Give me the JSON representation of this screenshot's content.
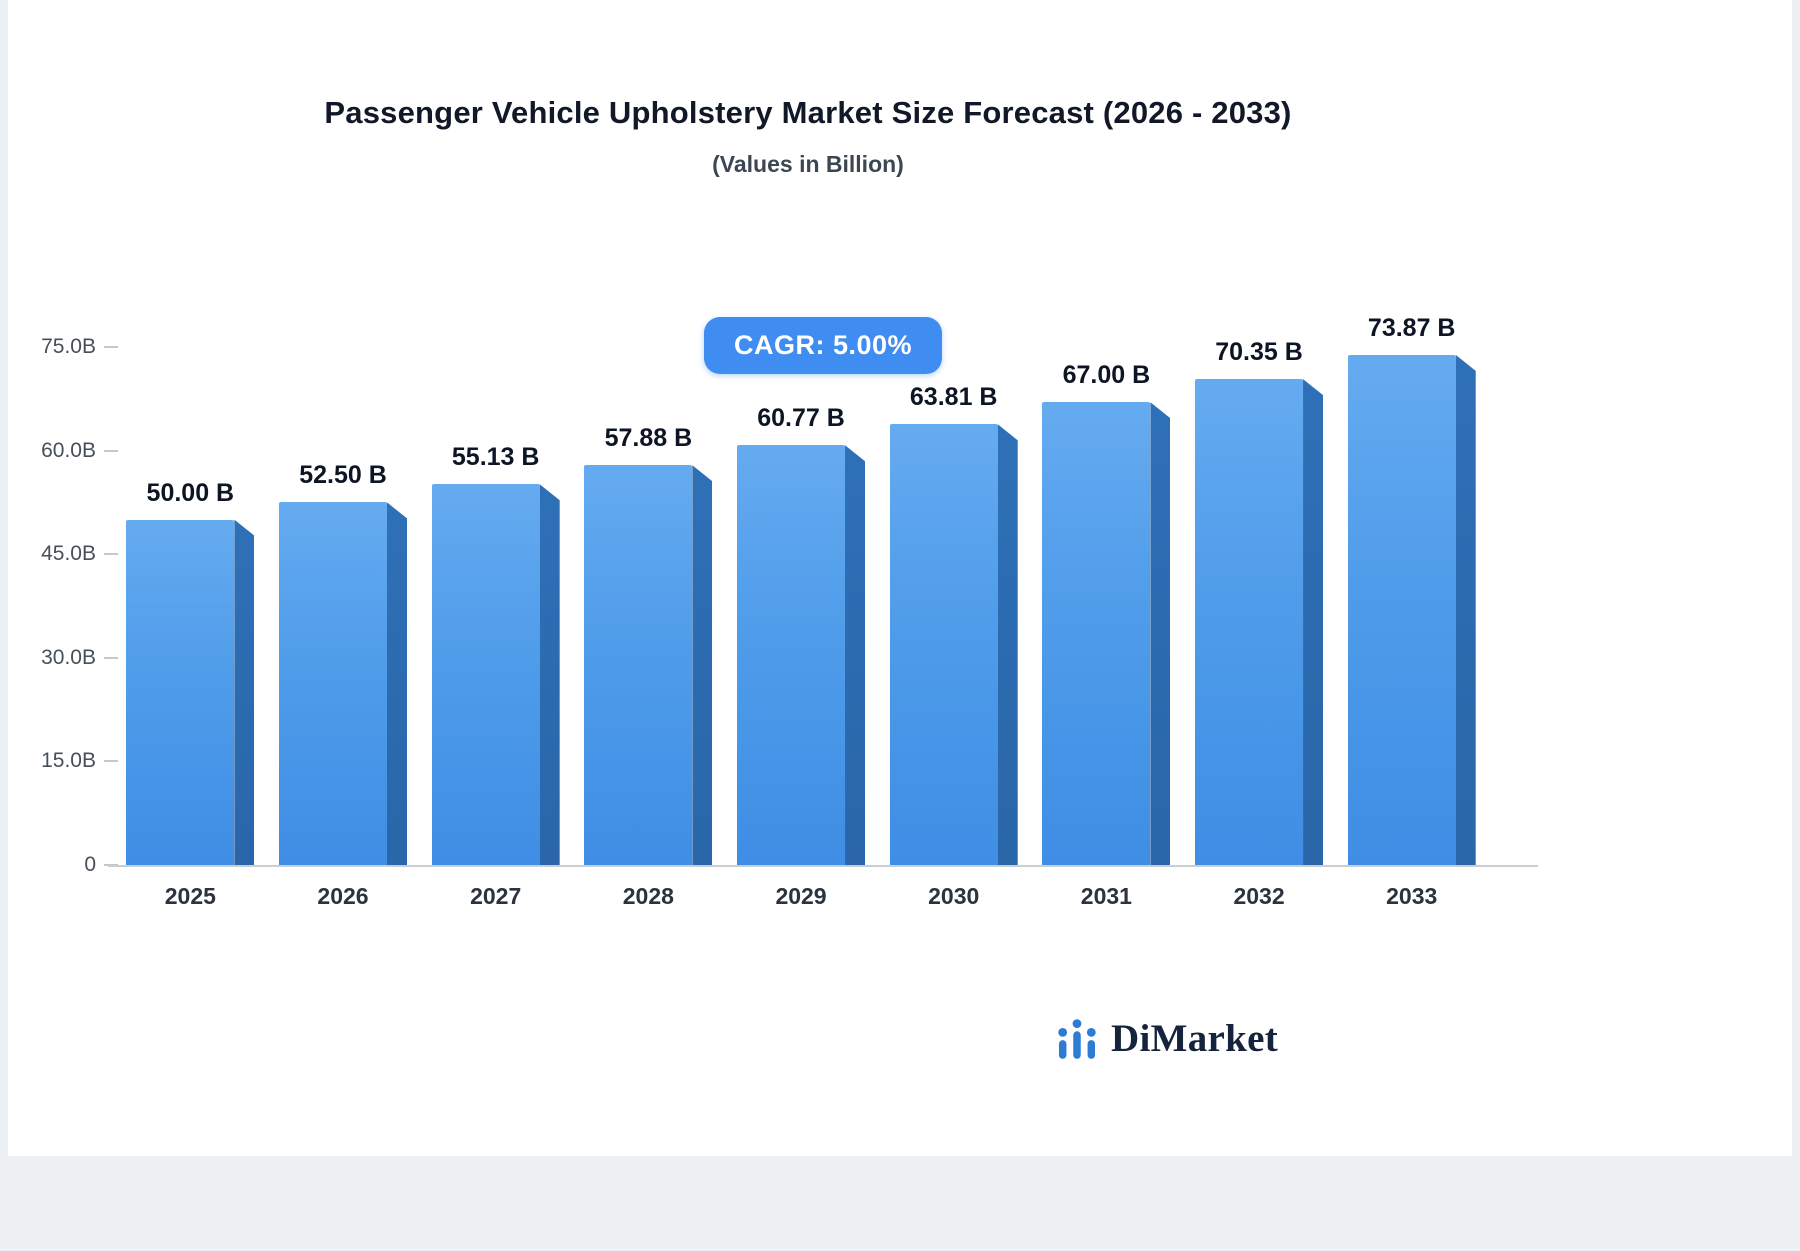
{
  "header": {
    "title": "Passenger Vehicle Upholstery Market Size Forecast (2026 - 2033)",
    "subtitle": "(Values in Billion)"
  },
  "badge": {
    "label": "CAGR: 5.00%"
  },
  "chart_data": {
    "type": "bar",
    "categories": [
      "2025",
      "2026",
      "2027",
      "2028",
      "2029",
      "2030",
      "2031",
      "2032",
      "2033"
    ],
    "values": [
      50.0,
      52.5,
      55.13,
      57.88,
      60.77,
      63.81,
      67.0,
      70.35,
      73.87
    ],
    "value_labels": [
      "50.00 B",
      "52.50 B",
      "55.13 B",
      "57.88 B",
      "60.77 B",
      "63.81 B",
      "67.00 B",
      "70.35 B",
      "73.87 B"
    ],
    "title": "Passenger Vehicle Upholstery Market Size Forecast (2026 - 2033)",
    "subtitle": "(Values in Billion)",
    "xlabel": "",
    "ylabel": "",
    "ylim": [
      0,
      75
    ],
    "yticks": [
      0,
      15,
      30,
      45,
      60,
      75
    ],
    "ytick_labels": [
      "0",
      "15.0B",
      "30.0B",
      "45.0B",
      "60.0B",
      "75.0B"
    ],
    "grid": false,
    "legend": "none",
    "annotation": "CAGR: 5.00%",
    "bar_color_top": "#65ABF0",
    "bar_color_bottom": "#3F8EE5",
    "bar_side_color": "#2E70B7",
    "badge_color": "#3F8DF0"
  },
  "footer": {
    "brand": "DiMarket",
    "brand_color": "#2D7CD3"
  }
}
